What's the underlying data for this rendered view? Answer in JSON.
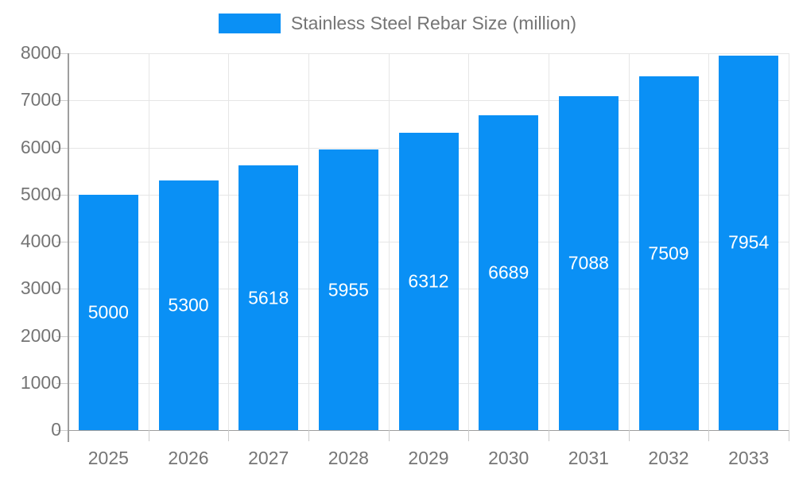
{
  "chart_data": {
    "type": "bar",
    "title": "Stainless Steel Rebar Size (million)",
    "legend_position": "top-center",
    "legend_entries": [
      "Stainless Steel Rebar Size (million)"
    ],
    "categories": [
      "2025",
      "2026",
      "2027",
      "2028",
      "2029",
      "2030",
      "2031",
      "2032",
      "2033"
    ],
    "values": [
      5000,
      5300,
      5618,
      5955,
      6312,
      6689,
      7088,
      7509,
      7954
    ],
    "xlabel": "",
    "ylabel": "",
    "ylim": [
      0,
      8000
    ],
    "yticks": [
      0,
      1000,
      2000,
      3000,
      4000,
      5000,
      6000,
      7000,
      8000
    ],
    "grid": true,
    "bar_value_labels_inside": true,
    "colors": {
      "bar": "#0a90f5",
      "bar_label_text": "#ffffff",
      "axis_text": "#757575",
      "grid_line": "#e6e6e6",
      "axis_line": "#9e9e9e",
      "tick_line": "#cccccc",
      "background": "#ffffff"
    }
  }
}
